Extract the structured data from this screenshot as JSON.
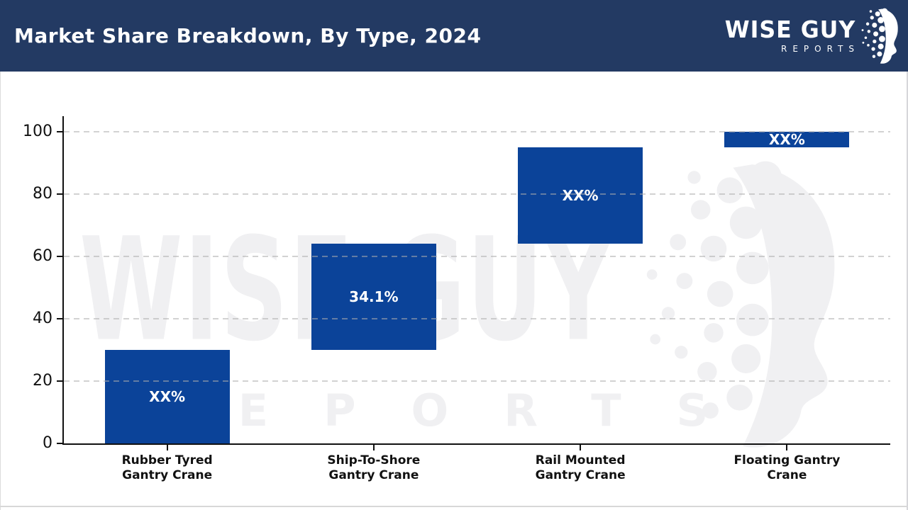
{
  "header": {
    "title": "Market Share Breakdown, By Type, 2024",
    "bg_color": "#233a63",
    "logo": {
      "line1": "WISE GUY",
      "line2": "REPORTS"
    }
  },
  "watermark": {
    "line1": "WISE GUY",
    "line2": "REPORTS"
  },
  "chart_data": {
    "type": "bar",
    "subtype": "waterfall",
    "title": "Market Share Breakdown, By Type, 2024",
    "categories": [
      "Rubber Tyred Gantry Crane",
      "Ship-To-Shore Gantry Crane",
      "Rail Mounted Gantry Crane",
      "Floating Gantry Crane"
    ],
    "category_label_lines": [
      [
        "Rubber Tyred",
        "Gantry Crane"
      ],
      [
        "Ship-To-Shore",
        "Gantry Crane"
      ],
      [
        "Rail Mounted",
        "Gantry Crane"
      ],
      [
        "Floating Gantry",
        "Crane"
      ]
    ],
    "bars": [
      {
        "start": 0,
        "end": 30,
        "label": "XX%"
      },
      {
        "start": 30,
        "end": 64.1,
        "label": "34.1%"
      },
      {
        "start": 64.1,
        "end": 95,
        "label": "XX%"
      },
      {
        "start": 95,
        "end": 100,
        "label": "XX%"
      }
    ],
    "yticks": [
      0,
      20,
      40,
      60,
      80,
      100
    ],
    "ylim": [
      0,
      105
    ],
    "xlabel": "",
    "ylabel": "",
    "bar_color": "#0b4399",
    "grid": true,
    "gridline_style": "dashed",
    "legend": false
  }
}
